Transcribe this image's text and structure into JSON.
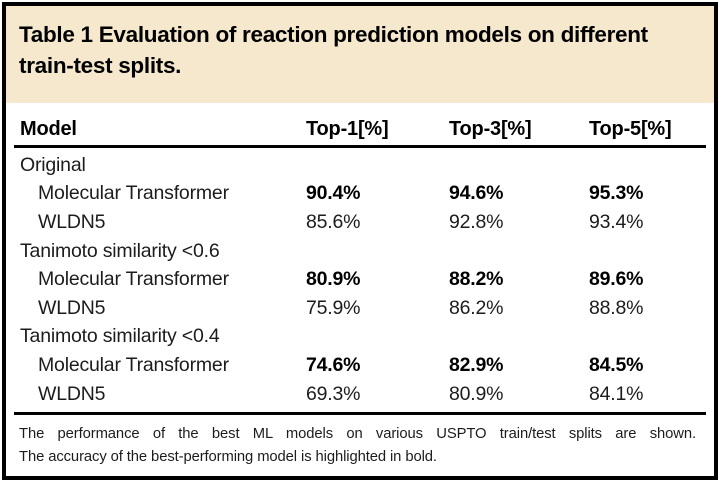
{
  "colors": {
    "title_band_bg": "#f5e8cd",
    "border": "#000000",
    "text": "#111111",
    "body_text": "#1c1c1c"
  },
  "title": {
    "lines": [
      "Table 1 Evaluation of reaction prediction models on different",
      "train-test splits."
    ]
  },
  "table": {
    "columns": [
      "Model",
      "Top-1[%]",
      "Top-3[%]",
      "Top-5[%]"
    ],
    "rows": [
      {
        "label": "Original",
        "indent": false,
        "bold": false,
        "values": []
      },
      {
        "label": "Molecular Transformer",
        "indent": true,
        "bold": true,
        "values": [
          "90.4%",
          "94.6%",
          "95.3%"
        ]
      },
      {
        "label": "WLDN5",
        "indent": true,
        "bold": false,
        "values": [
          "85.6%",
          "92.8%",
          "93.4%"
        ]
      },
      {
        "label": "Tanimoto similarity <0.6",
        "indent": false,
        "bold": false,
        "values": []
      },
      {
        "label": "Molecular Transformer",
        "indent": true,
        "bold": true,
        "values": [
          "80.9%",
          "88.2%",
          "89.6%"
        ]
      },
      {
        "label": "WLDN5",
        "indent": true,
        "bold": false,
        "values": [
          "75.9%",
          "86.2%",
          "88.8%"
        ]
      },
      {
        "label": "Tanimoto similarity <0.4",
        "indent": false,
        "bold": false,
        "values": []
      },
      {
        "label": "Molecular Transformer",
        "indent": true,
        "bold": true,
        "values": [
          "74.6%",
          "82.9%",
          "84.5%"
        ]
      },
      {
        "label": "WLDN5",
        "indent": true,
        "bold": false,
        "values": [
          "69.3%",
          "80.9%",
          "84.1%"
        ]
      }
    ]
  },
  "footnote": {
    "lines": [
      "The performance of the best ML models on various USPTO train/test splits are shown.",
      "The accuracy of the best-performing model is highlighted in bold."
    ]
  }
}
